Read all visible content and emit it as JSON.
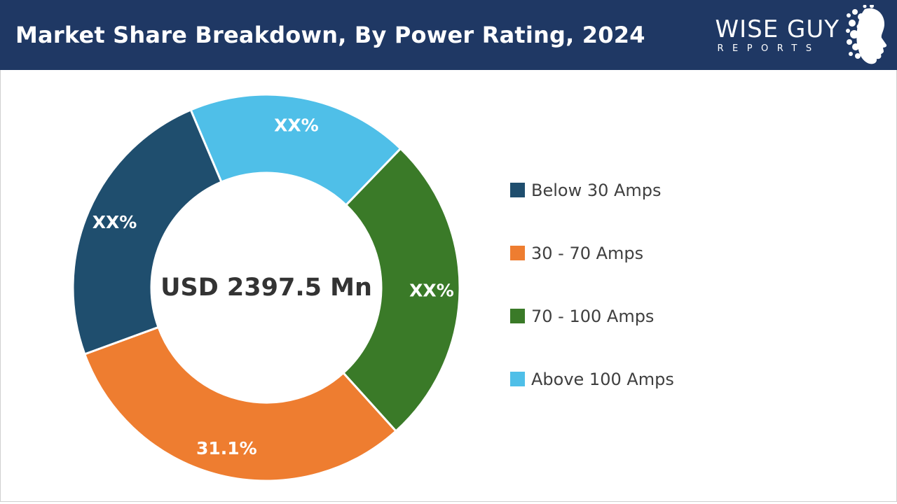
{
  "header": {
    "title": "Market Share Breakdown, By Power Rating, 2024",
    "background": "#1F3864",
    "logo": {
      "line1": "WISE GUY",
      "line2": "REPORTS"
    }
  },
  "watermark": {
    "line1": "WISE GUY",
    "line2": "R E P O R T S"
  },
  "chart_data": {
    "type": "pie",
    "subtype": "donut",
    "title": "Market Share Breakdown, By Power Rating, 2024",
    "center_label": "USD 2397.5 Mn",
    "unit": "percent share",
    "start_angle_deg": -23,
    "direction": "clockwise",
    "outer_radius_px": 276,
    "inner_radius_px": 164,
    "label_radius_ratio": 0.855,
    "segments": [
      {
        "name": "Above 100 Amps",
        "display_label": "XX%",
        "pct": 18.6,
        "color": "#4FBFE8"
      },
      {
        "name": "70 - 100 Amps",
        "display_label": "XX%",
        "pct": 26.1,
        "color": "#3A7A28"
      },
      {
        "name": "30 - 70 Amps",
        "display_label": "31.1%",
        "pct": 31.1,
        "color": "#EE7D30"
      },
      {
        "name": "Below 30 Amps",
        "display_label": "XX%",
        "pct": 24.2,
        "color": "#1F4E6E"
      }
    ],
    "legend": [
      {
        "label": "Below 30 Amps",
        "color": "#1F4E6E"
      },
      {
        "label": "30 - 70 Amps",
        "color": "#EE7D30"
      },
      {
        "label": "70 - 100 Amps",
        "color": "#3A7A28"
      },
      {
        "label": "Above 100 Amps",
        "color": "#4FBFE8"
      }
    ],
    "legend_position": "right"
  }
}
